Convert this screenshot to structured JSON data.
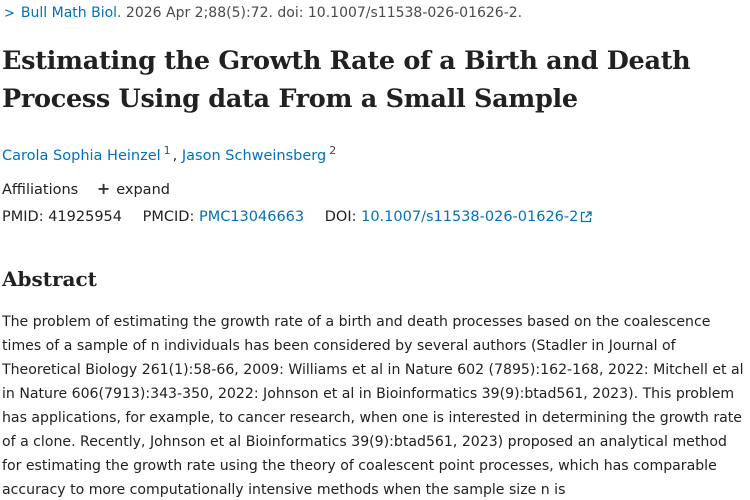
{
  "citation": {
    "journal": "Bull Math Biol.",
    "details": " 2026 Apr 2;88(5):72. doi: 10.1007/s11538-026-01626-2."
  },
  "article": {
    "title": "Estimating the Growth Rate of a Birth and Death Process Using data From a Small Sample"
  },
  "authors": [
    {
      "name": "Carola Sophia Heinzel",
      "affiliation": "1"
    },
    {
      "name": "Jason Schweinsberg",
      "affiliation": "2"
    }
  ],
  "affiliations": {
    "label": "Affiliations",
    "expand_label": "expand"
  },
  "identifiers": {
    "pmid_label": "PMID:",
    "pmid": "41925954",
    "pmcid_label": "PMCID:",
    "pmcid": "PMC13046663",
    "doi_label": "DOI:",
    "doi": "10.1007/s11538-026-01626-2"
  },
  "abstract": {
    "heading": "Abstract",
    "text": "The problem of estimating the growth rate of a birth and death processes based on the coalescence times of a sample of n individuals has been considered by several authors (Stadler in Journal of Theoretical Biology 261(1):58-66, 2009: Williams et al in Nature 602 (7895):162-168, 2022: Mitchell et al in Nature 606(7913):343-350, 2022: Johnson et al in Bioinformatics 39(9):btad561, 2023). This problem has applications, for example, to cancer research, when one is interested in determining the growth rate of a clone. Recently, Johnson et al Bioinformatics 39(9):btad561, 2023) proposed an analytical method for estimating the growth rate using the theory of coalescent point processes, which has comparable accuracy to more computationally intensive methods when the sample size n is"
  },
  "colors": {
    "link": "#0071bc",
    "text": "#212121"
  },
  "icons": {
    "chevron": "chevron-right-icon",
    "expand": "plus-icon",
    "external": "external-link-icon"
  }
}
